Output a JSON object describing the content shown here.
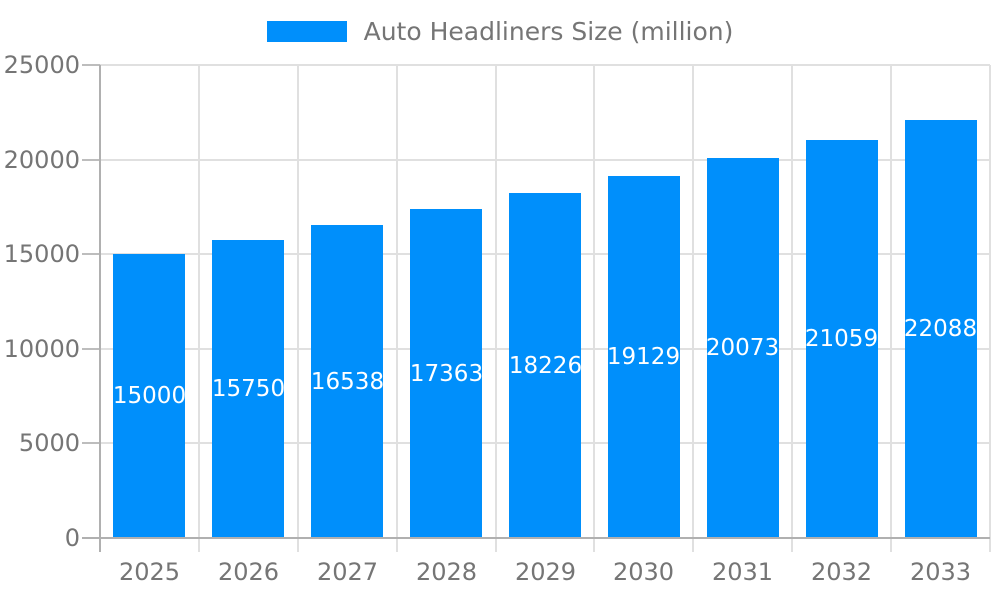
{
  "chart_data": {
    "type": "bar",
    "title": "Auto Headliners Size (million)",
    "categories": [
      "2025",
      "2026",
      "2027",
      "2028",
      "2029",
      "2030",
      "2031",
      "2032",
      "2033"
    ],
    "values": [
      15000,
      15750,
      16538,
      17363,
      18226,
      19129,
      20073,
      21059,
      22088
    ],
    "xlabel": "",
    "ylabel": "",
    "ylim": [
      0,
      25000
    ],
    "yticks": [
      0,
      5000,
      10000,
      15000,
      20000,
      25000
    ],
    "grid": true,
    "legend_position": "top-center",
    "bar_label_position": "inside-center",
    "colors": {
      "bar": "#008FFB",
      "bar_label": "#FFFFFF",
      "axis_text": "#757575",
      "grid_line": "#E0E0E0",
      "axis_line": "#B0B0B0",
      "background": "#FFFFFF"
    }
  }
}
